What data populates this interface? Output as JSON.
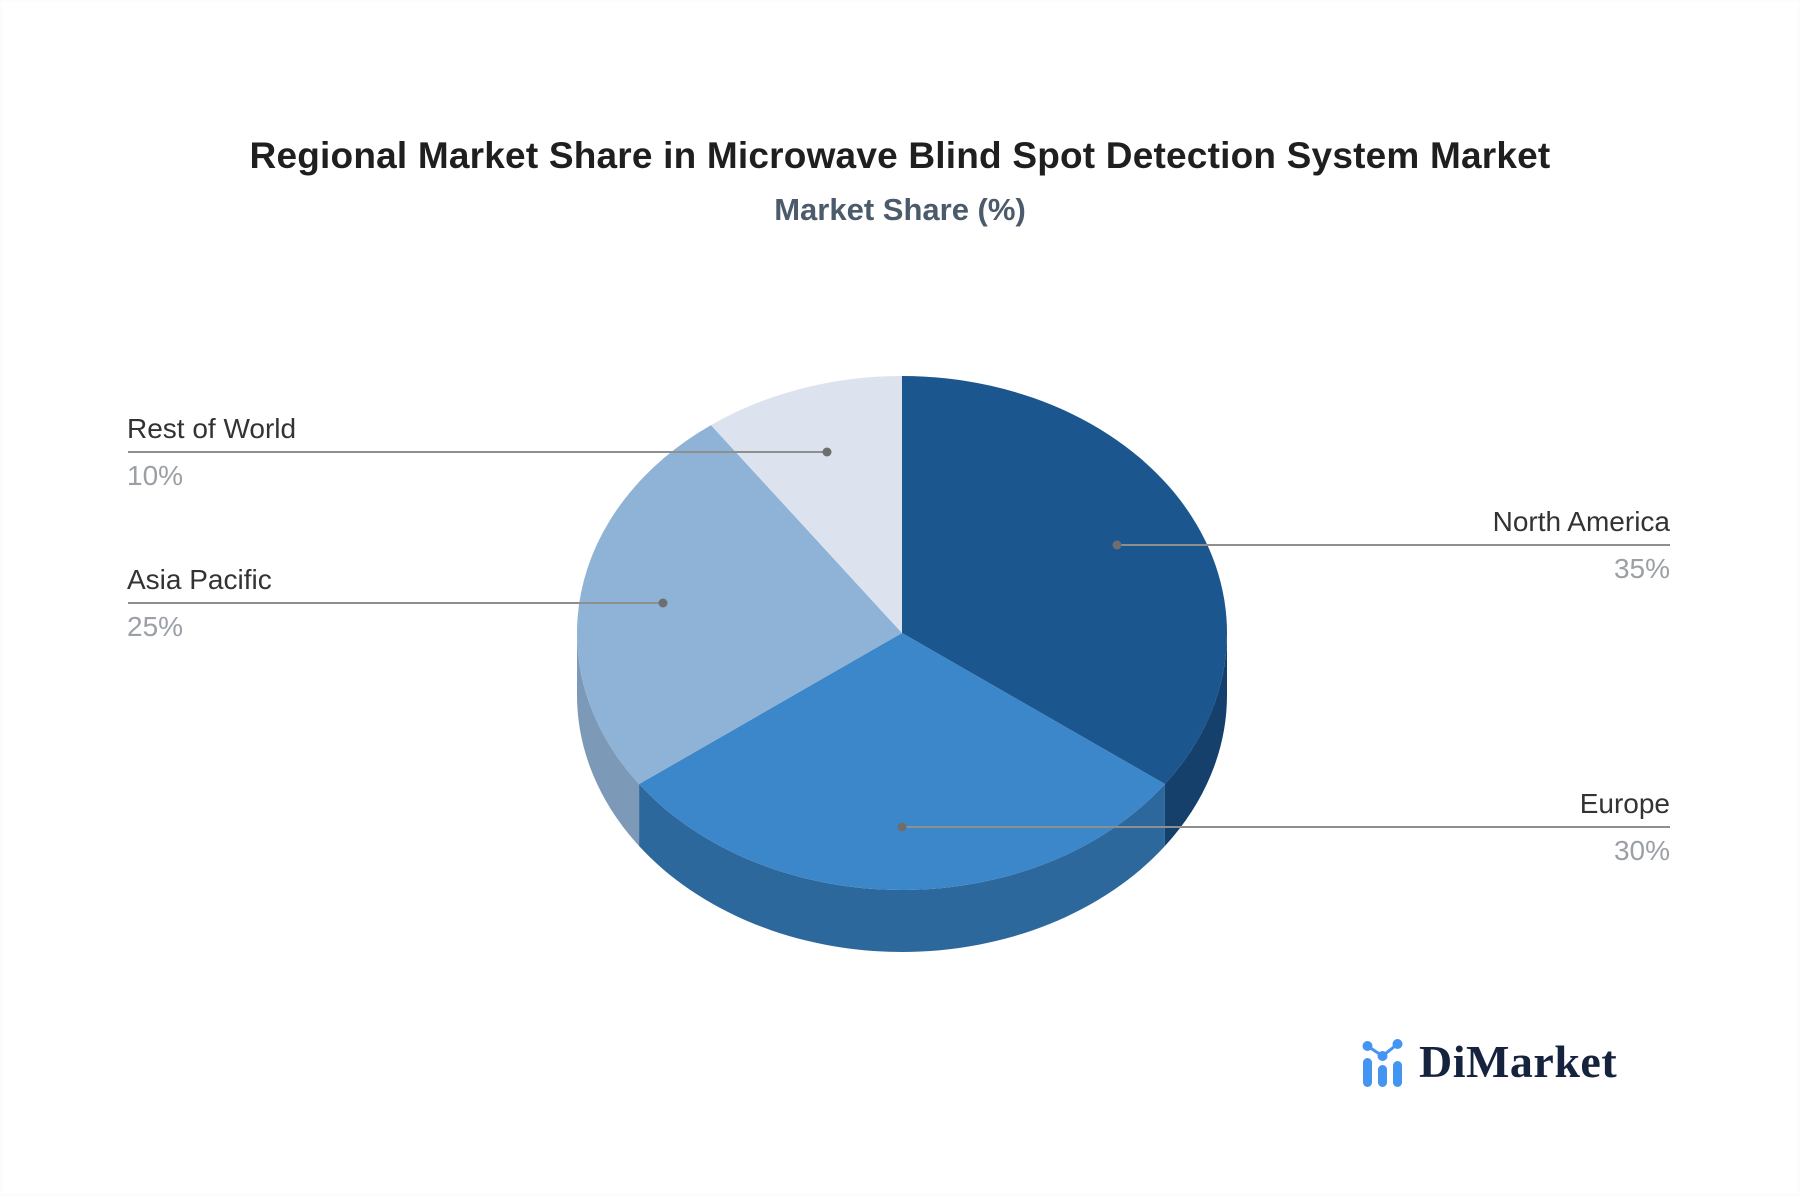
{
  "header": {
    "title": "Regional Market Share in Microwave Blind Spot Detection System Market",
    "subtitle": "Market Share (%)"
  },
  "chart_data": {
    "type": "pie",
    "style": "3d-depth",
    "title": "Regional Market Share in Microwave Blind Spot Detection System Market",
    "subtitle": "Market Share (%)",
    "unit": "%",
    "start_angle_deg": 0,
    "direction": "clockwise",
    "slices": [
      {
        "label": "North America",
        "value": 35,
        "pct_label": "35%",
        "color": "#1B568F",
        "side_color": "#14406B"
      },
      {
        "label": "Europe",
        "value": 30,
        "pct_label": "30%",
        "color": "#3B87C9",
        "side_color": "#2D689C"
      },
      {
        "label": "Asia Pacific",
        "value": 25,
        "pct_label": "25%",
        "color": "#8FB3D7",
        "side_color": "#7D99B8"
      },
      {
        "label": "Rest of World",
        "value": 10,
        "pct_label": "10%",
        "color": "#DDE3EE",
        "side_color": "#C5D0E0"
      }
    ],
    "legend_position": "callout-leader-lines",
    "leader_line_color": "#8F8F8F",
    "leader_dot_color": "#6E6E6E",
    "label_color": "#333333",
    "pct_color": "#9BA0A6"
  },
  "branding": {
    "logo_text": "DiMarket",
    "logo_icon": "bar-line-chart-icon",
    "logo_text_color": "#16233E",
    "logo_icon_color": "#4495F2"
  }
}
